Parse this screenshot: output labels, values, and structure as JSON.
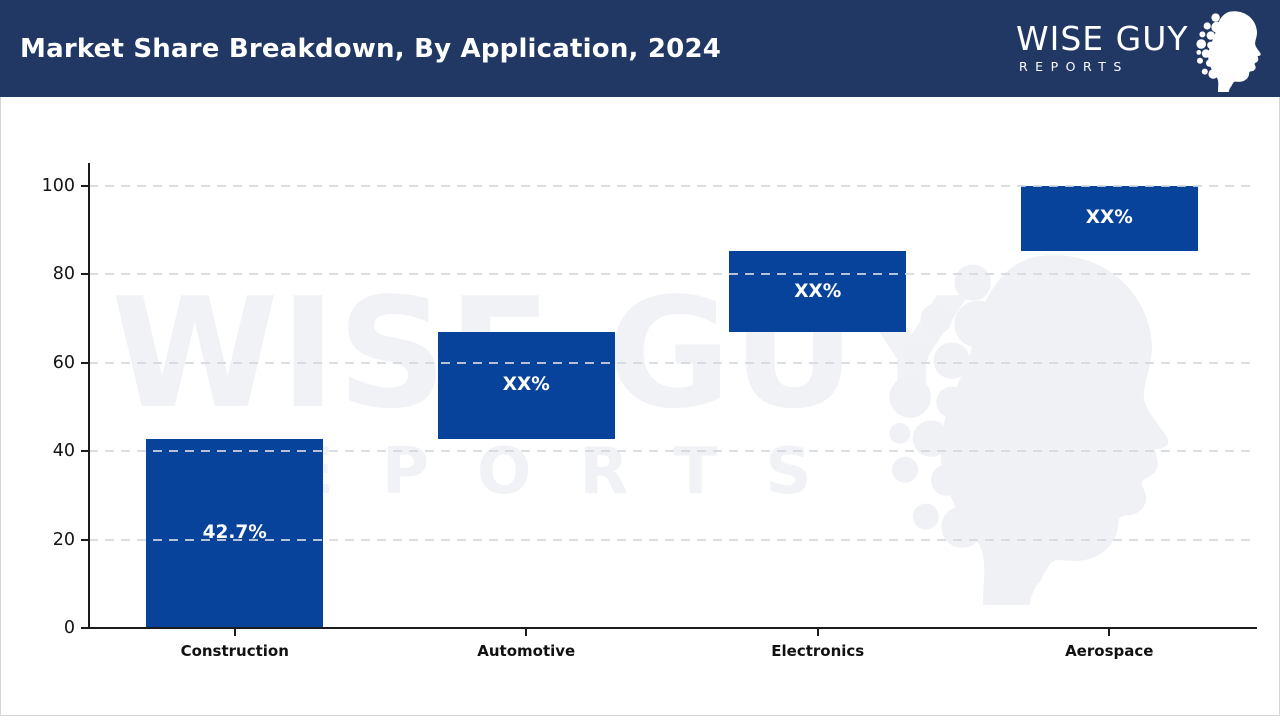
{
  "header": {
    "title": "Market Share Breakdown, By Application, 2024",
    "bg_color": "#213865",
    "logo": {
      "line1": "WISE GUY",
      "line2": "REPORTS"
    }
  },
  "watermark": {
    "line1": "WISE GUY",
    "line2": "REPORTS"
  },
  "chart_data": {
    "type": "bar",
    "subtype": "waterfall",
    "title": "Market Share Breakdown, By Application, 2024",
    "xlabel": "",
    "ylabel": "",
    "categories": [
      "Construction",
      "Automotive",
      "Electronics",
      "Aerospace"
    ],
    "segments": [
      {
        "category": "Construction",
        "start": 0,
        "end": 42.7,
        "label": "42.7%"
      },
      {
        "category": "Automotive",
        "start": 42.7,
        "end": 66.9,
        "label": "XX%"
      },
      {
        "category": "Electronics",
        "start": 66.9,
        "end": 85.3,
        "label": "XX%"
      },
      {
        "category": "Aerospace",
        "start": 85.3,
        "end": 100,
        "label": "XX%"
      }
    ],
    "yticks": [
      0,
      20,
      40,
      60,
      80,
      100
    ],
    "ytick_labels": [
      "0",
      "20",
      "40",
      "60",
      "80",
      "100"
    ],
    "ylim": [
      0,
      105
    ],
    "bar_color": "#08439b",
    "grid": "dashed-horizontal",
    "legend": "none",
    "value_label_color": "#ffffff"
  }
}
